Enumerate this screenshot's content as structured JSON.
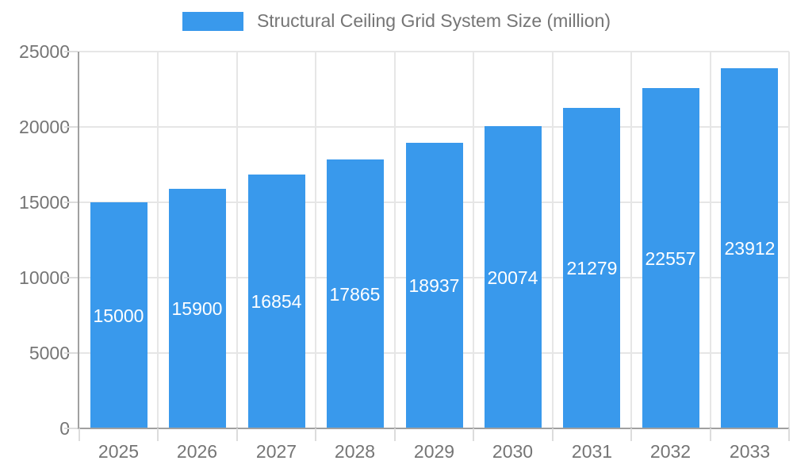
{
  "chart_data": {
    "type": "bar",
    "title": "Structural Ceiling Grid System Size (million)",
    "categories": [
      "2025",
      "2026",
      "2027",
      "2028",
      "2029",
      "2030",
      "2031",
      "2032",
      "2033"
    ],
    "values": [
      15000,
      15900,
      16854,
      17865,
      18937,
      20074,
      21279,
      22557,
      23912
    ],
    "xlabel": "",
    "ylabel": "",
    "ylim": [
      0,
      25000
    ],
    "ytick_step": 5000,
    "ytick_labels": [
      "0",
      "5000",
      "10000",
      "15000",
      "20000",
      "25000"
    ],
    "grid": "both",
    "legend_position": "top",
    "value_labels": "inside-center"
  },
  "colors": {
    "bar": "#3999EC",
    "axis_line": "#A0A0A0",
    "gridline": "#E6E6E6",
    "tick": "#DCDCDC",
    "axis_label": "#757575",
    "legend_label": "#757575",
    "bar_label": "#FFFFFF",
    "background": "#FFFFFF"
  }
}
